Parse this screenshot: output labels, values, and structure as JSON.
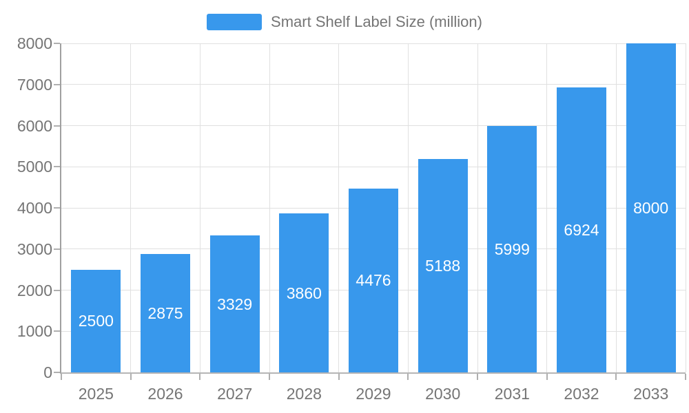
{
  "chart_data": {
    "type": "bar",
    "title": "Smart Shelf Label Size (million)",
    "legend": [
      "Smart Shelf Label Size (million)"
    ],
    "legend_position": "top-center",
    "categories": [
      "2025",
      "2026",
      "2027",
      "2028",
      "2029",
      "2030",
      "2031",
      "2032",
      "2033"
    ],
    "values": [
      2500,
      2875,
      3329,
      3860,
      4476,
      5188,
      5999,
      6924,
      8000
    ],
    "value_labels": [
      "2500",
      "2875",
      "3329",
      "3860",
      "4476",
      "5188",
      "5999",
      "6924",
      "8000"
    ],
    "value_label_position": "inside-center",
    "xlabel": "",
    "ylabel": "",
    "ylim": [
      0,
      8000
    ],
    "yticks": [
      0,
      1000,
      2000,
      3000,
      4000,
      5000,
      6000,
      7000,
      8000
    ],
    "grid": true,
    "colors": {
      "bar": "#3898EC",
      "value_label": "#FFFFFF",
      "axis_text": "#757575",
      "gridline": "#E0E0E0",
      "axis_line": "#AFAFAF",
      "background": "#FFFFFF"
    }
  }
}
